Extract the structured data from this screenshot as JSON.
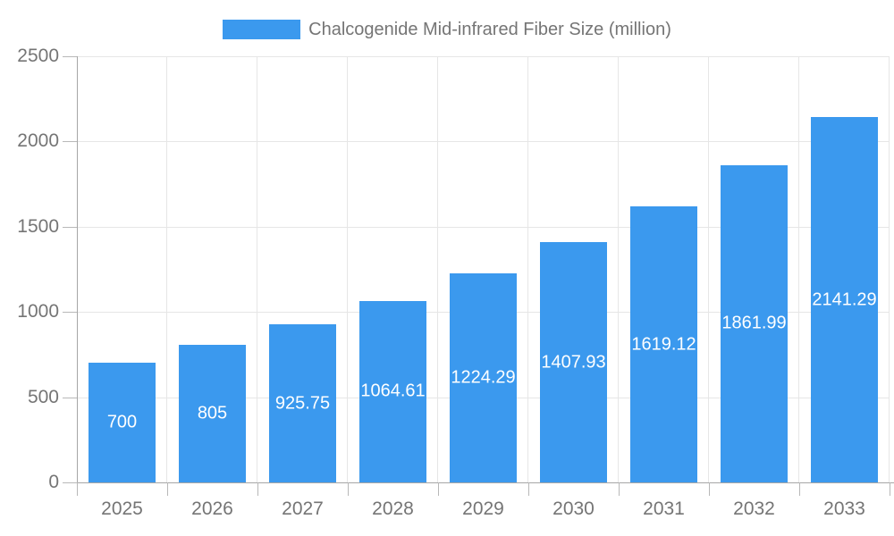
{
  "legend": {
    "label": "Chalcogenide Mid-infrared Fiber Size (million)"
  },
  "chart_data": {
    "type": "bar",
    "title": "Chalcogenide Mid-infrared Fiber Size (million)",
    "categories": [
      "2025",
      "2026",
      "2027",
      "2028",
      "2029",
      "2030",
      "2031",
      "2032",
      "2033"
    ],
    "values": [
      700,
      805,
      925.75,
      1064.61,
      1224.29,
      1407.93,
      1619.12,
      1861.99,
      2141.29
    ],
    "value_labels": [
      "700",
      "805",
      "925.75",
      "1064.61",
      "1224.29",
      "1407.93",
      "1619.12",
      "1861.99",
      "2141.29"
    ],
    "xlabel": "",
    "ylabel": "",
    "ylim": [
      0,
      2500
    ],
    "yticks": [
      0,
      500,
      1000,
      1500,
      2000,
      2500
    ],
    "grid": true,
    "legend_position": "top",
    "bar_color": "#3b99ee",
    "value_label_color": "#ffffff",
    "axis_text_color": "#757575",
    "gridline_color": "#e6e6e6",
    "axis_line_color": "#a6a6a6"
  }
}
